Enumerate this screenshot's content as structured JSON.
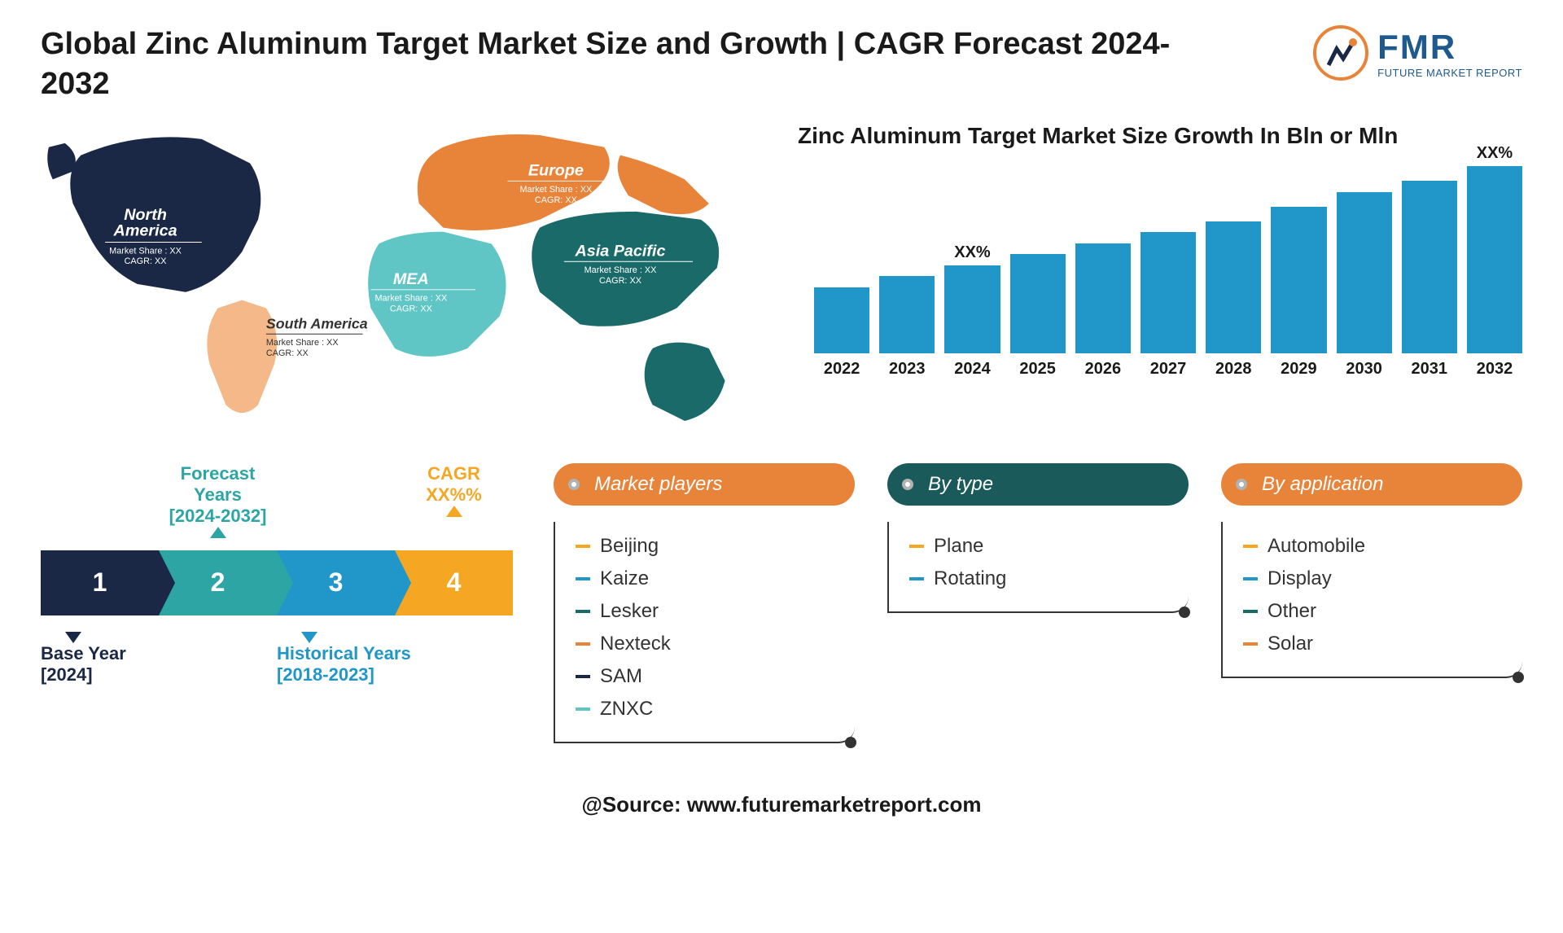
{
  "title": "Global Zinc Aluminum Target Market Size and Growth | CAGR Forecast 2024-2032",
  "logo": {
    "brand": "FMR",
    "tagline": "FUTURE MARKET REPORT"
  },
  "map": {
    "regions": [
      {
        "name": "North America",
        "share": "Market Share : XX",
        "cagr": "CAGR: XX",
        "color": "#1a2845"
      },
      {
        "name": "South America",
        "share": "Market Share : XX",
        "cagr": "CAGR: XX",
        "color": "#f5b888"
      },
      {
        "name": "Europe",
        "share": "Market Share : XX",
        "cagr": "CAGR: XX",
        "color": "#e8833a"
      },
      {
        "name": "MEA",
        "share": "Market Share : XX",
        "cagr": "CAGR: XX",
        "color": "#5fc5c5"
      },
      {
        "name": "Asia Pacific",
        "share": "Market Share : XX",
        "cagr": "CAGR: XX",
        "color": "#1a6a6a"
      }
    ]
  },
  "chart": {
    "title": "Zinc Aluminum Target Market Size Growth In Bln or Mln",
    "type": "bar",
    "bar_color": "#2196c9",
    "categories": [
      "2022",
      "2023",
      "2024",
      "2025",
      "2026",
      "2027",
      "2028",
      "2029",
      "2030",
      "2031",
      "2032"
    ],
    "values": [
      90,
      105,
      120,
      135,
      150,
      165,
      180,
      200,
      220,
      235,
      255
    ],
    "annotations": [
      {
        "index": 2,
        "text": "XX%"
      },
      {
        "index": 10,
        "text": "XX%"
      }
    ],
    "label_fontsize": 20,
    "title_fontsize": 28
  },
  "timeline": {
    "forecast": {
      "label": "Forecast Years",
      "range": "[2024-2032]",
      "color": "#2da5a5"
    },
    "cagr": {
      "label": "CAGR",
      "value": "XX%%",
      "color": "#f5a623"
    },
    "base": {
      "label": "Base Year",
      "range": "[2024]",
      "color": "#1a2845"
    },
    "historical": {
      "label": "Historical Years",
      "range": "[2018-2023]",
      "color": "#2196c9"
    },
    "segments": [
      "1",
      "2",
      "3",
      "4"
    ],
    "segment_colors": [
      "#1a2845",
      "#2da5a5",
      "#2196c9",
      "#f5a623"
    ]
  },
  "pills": {
    "market_players": {
      "title": "Market players",
      "header_color": "#e8833a",
      "items": [
        "Beijing",
        "Kaize",
        "Lesker",
        "Nexteck",
        "SAM",
        "ZNXC"
      ],
      "bullet_colors": [
        "#f5a623",
        "#2196c9",
        "#1a6a6a",
        "#e8833a",
        "#1a2845",
        "#5fc5c5"
      ]
    },
    "by_type": {
      "title": "By type",
      "header_color": "#1a5a5a",
      "items": [
        "Plane",
        "Rotating"
      ],
      "bullet_colors": [
        "#f5a623",
        "#2196c9"
      ]
    },
    "by_application": {
      "title": "By application",
      "header_color": "#e8833a",
      "items": [
        "Automobile",
        "Display",
        "Other",
        "Solar"
      ],
      "bullet_colors": [
        "#f5a623",
        "#2196c9",
        "#1a6a6a",
        "#e8833a"
      ]
    }
  },
  "source": "@Source: www.futuremarketreport.com"
}
